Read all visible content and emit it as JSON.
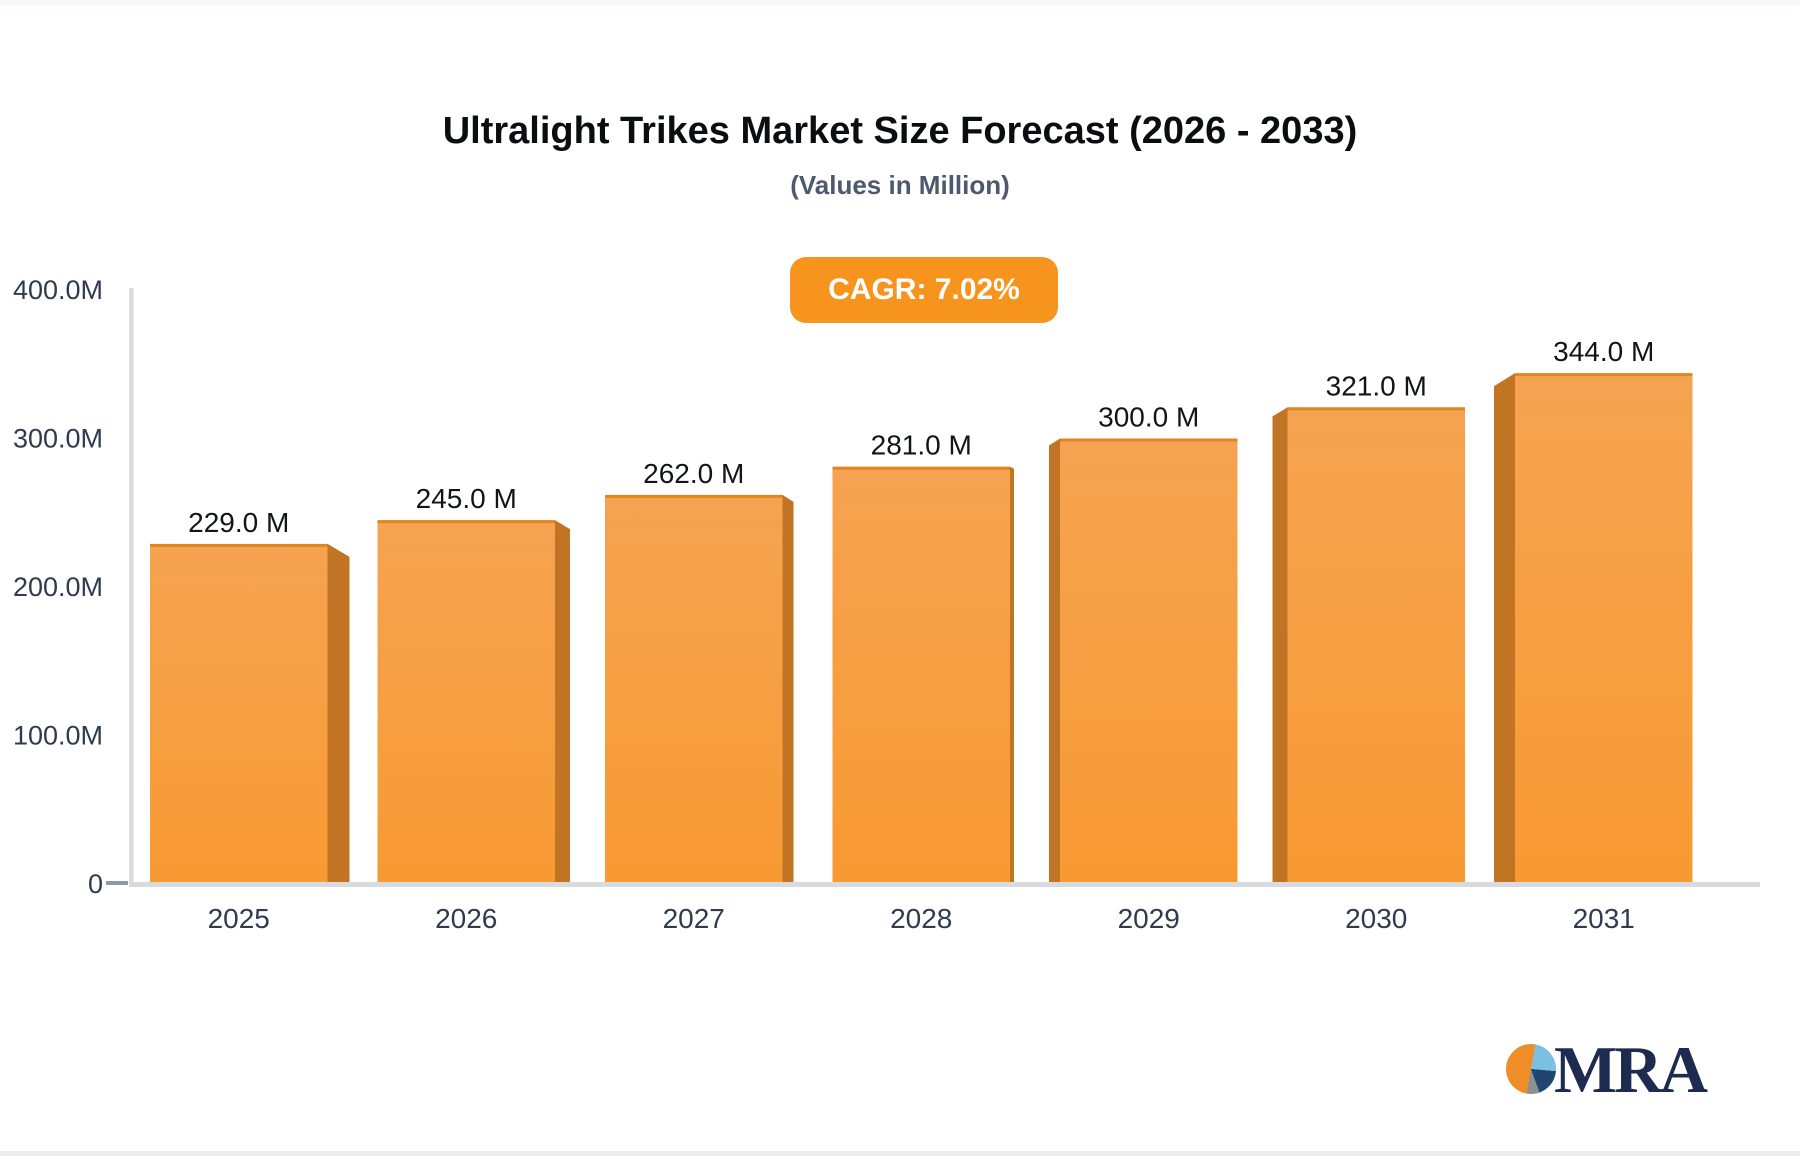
{
  "header": {
    "title": "Ultralight Trikes Market Size Forecast (2026 - 2033)",
    "subtitle": "(Values in Million)"
  },
  "badge": {
    "label": "CAGR: 7.02%",
    "bg_color": "#F7941E",
    "text_color": "#FFFFFF"
  },
  "chart_data": {
    "type": "bar",
    "title": "Ultralight Trikes Market Size Forecast (2026 - 2033)",
    "subtitle": "(Values in Million)",
    "categories": [
      "2025",
      "2026",
      "2027",
      "2028",
      "2029",
      "2030",
      "2031"
    ],
    "values": [
      229,
      245,
      262,
      281,
      300,
      321,
      344
    ],
    "value_labels": [
      "229.0 M",
      "245.0 M",
      "262.0 M",
      "281.0 M",
      "300.0 M",
      "321.0 M",
      "344.0 M"
    ],
    "ylim": [
      0,
      400
    ],
    "y_ticks": [
      {
        "value": 0,
        "label": "0"
      },
      {
        "value": 100,
        "label": "100.0M"
      },
      {
        "value": 200,
        "label": "200.0M"
      },
      {
        "value": 300,
        "label": "300.0M"
      },
      {
        "value": 400,
        "label": "400.0M"
      }
    ],
    "grid": false,
    "legend": false,
    "bar_style": "3d-column",
    "colors": {
      "face_top": "#F5A351",
      "face_bottom": "#F89A33",
      "side": "#C17423",
      "top_edge": "#DE861F",
      "axis": "#D9DADE",
      "zero_dash": "#9199A3",
      "tick_label": "#2F3B4F",
      "value_label": "#121417"
    }
  },
  "logo": {
    "text": "MRA",
    "text_color": "#1E2B51",
    "pie_colors": {
      "orange": "#EF8E27",
      "light_blue": "#7CC0E0",
      "navy": "#20456F",
      "gray": "#8E9094"
    }
  }
}
